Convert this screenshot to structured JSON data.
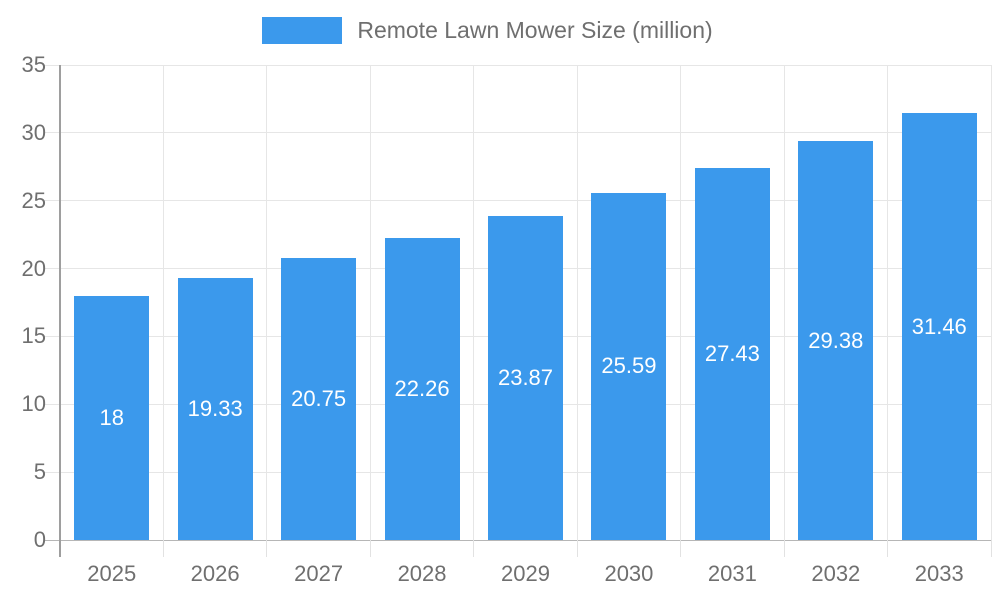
{
  "legend": {
    "label": "Remote Lawn Mower Size (million)"
  },
  "colors": {
    "bar": "#3b99ec",
    "grid": "#e6e6e6",
    "baseline": "#b6b6b6",
    "axis_line": "#9e9e9e",
    "tick": "#e2e2e2",
    "text": "#6f6f6f",
    "bar_label": "#ffffff",
    "background": "#ffffff"
  },
  "chart_data": {
    "type": "bar",
    "title": "Remote Lawn Mower Size (million)",
    "categories": [
      "2025",
      "2026",
      "2027",
      "2028",
      "2029",
      "2030",
      "2031",
      "2032",
      "2033"
    ],
    "series": [
      {
        "name": "Remote Lawn Mower Size (million)",
        "values": [
          18,
          19.33,
          20.75,
          22.26,
          23.87,
          25.59,
          27.43,
          29.38,
          31.46
        ],
        "labels": [
          "18",
          "19.33",
          "20.75",
          "22.26",
          "23.87",
          "25.59",
          "27.43",
          "29.38",
          "31.46"
        ]
      }
    ],
    "xlabel": "",
    "ylabel": "",
    "ylim": [
      0,
      35
    ],
    "yticks": [
      0,
      5,
      10,
      15,
      20,
      25,
      30,
      35
    ],
    "grid": true,
    "legend_position": "top",
    "value_labels_inside": true
  }
}
